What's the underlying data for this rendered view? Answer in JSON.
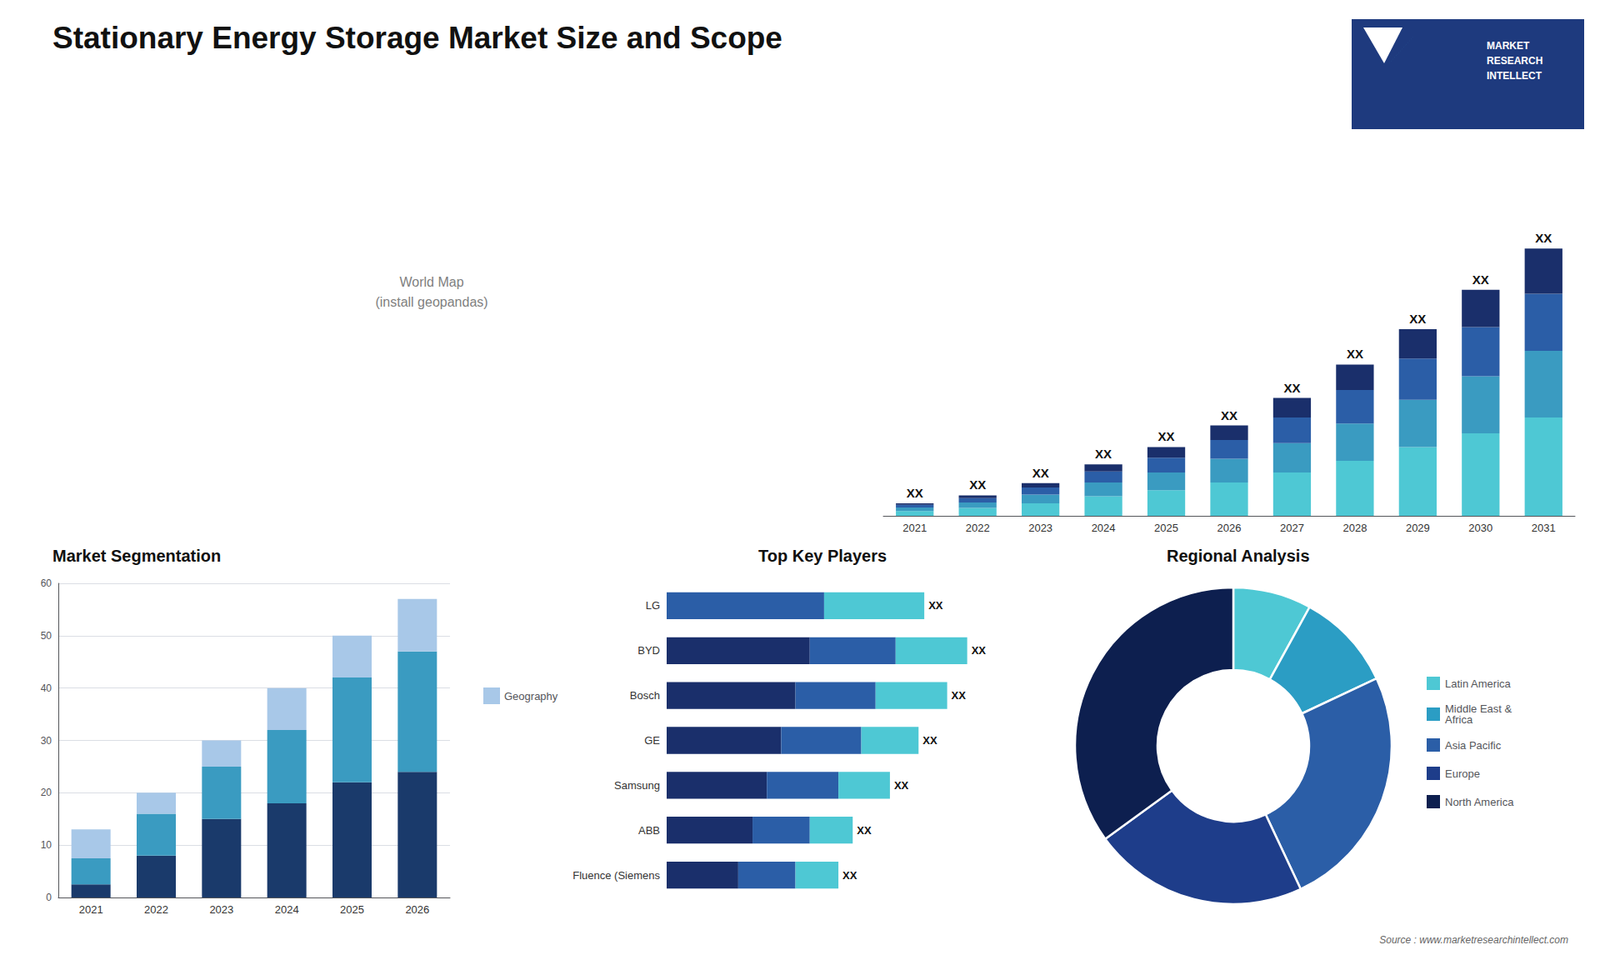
{
  "chart_data": [
    {
      "type": "bar",
      "title": "Stationary Energy Storage Market Size and Scope",
      "categories": [
        "2021",
        "2022",
        "2023",
        "2024",
        "2025",
        "2026",
        "2027",
        "2028",
        "2029",
        "2030",
        "2031"
      ],
      "stacked": true,
      "series": [
        {
          "color": "#4ec8d4",
          "values": [
            1.2,
            2.0,
            3.2,
            5.0,
            6.5,
            8.5,
            11.0,
            14.0,
            17.5,
            21.0,
            25.0
          ]
        },
        {
          "color": "#3a9bc1",
          "values": [
            0.9,
            1.4,
            2.2,
            3.5,
            4.5,
            6.0,
            7.5,
            9.5,
            12.0,
            14.5,
            17.0
          ]
        },
        {
          "color": "#2b5ea7",
          "values": [
            0.7,
            1.1,
            1.8,
            2.8,
            3.8,
            4.8,
            6.5,
            8.5,
            10.5,
            12.5,
            14.5
          ]
        },
        {
          "color": "#1a2f6b",
          "values": [
            0.4,
            0.7,
            1.1,
            1.8,
            2.7,
            3.7,
            5.0,
            6.5,
            7.5,
            9.5,
            11.5
          ]
        }
      ],
      "ylim": [
        0,
        95.2
      ],
      "tick_labels": "x",
      "grid": false,
      "annotations": [
        {
          "category": "2021",
          "text": "XX"
        },
        {
          "category": "2022",
          "text": "XX"
        },
        {
          "category": "2023",
          "text": "XX"
        },
        {
          "category": "2024",
          "text": "XX"
        },
        {
          "category": "2025",
          "text": "XX"
        },
        {
          "category": "2026",
          "text": "XX"
        },
        {
          "category": "2027",
          "text": "XX"
        },
        {
          "category": "2028",
          "text": "XX"
        },
        {
          "category": "2029",
          "text": "XX"
        },
        {
          "category": "2030",
          "text": "XX"
        },
        {
          "category": "2031",
          "text": "XX"
        }
      ]
    },
    {
      "type": "bar",
      "title": "Market Segmentation",
      "categories": [
        "2021",
        "2022",
        "2023",
        "2024",
        "2025",
        "2026"
      ],
      "stacked": true,
      "series": [
        {
          "color": "#1a3a6b",
          "values": [
            2.5,
            8.0,
            15.0,
            18.0,
            22.0,
            24.0
          ]
        },
        {
          "color": "#3a9bc1",
          "values": [
            5.0,
            8.0,
            10.0,
            14.0,
            20.0,
            23.0
          ]
        },
        {
          "name": "Geography",
          "color": "#a8c8e8",
          "values": [
            5.5,
            4.0,
            5.0,
            8.0,
            8.0,
            10.0
          ]
        }
      ],
      "ylim": [
        0,
        60
      ],
      "yticks": [
        0,
        10,
        20,
        30,
        40,
        50,
        60
      ],
      "grid": true,
      "legend": "right"
    },
    {
      "type": "bar",
      "orientation": "horizontal",
      "title": "Top Key Players",
      "categories": [
        "LG",
        "BYD",
        "Bosch",
        "GE",
        "Samsung",
        "ABB",
        "Fluence (Siemens"
      ],
      "stacked": true,
      "series": [
        {
          "color": "#1a2f6b",
          "values": [
            0.0,
            5.0,
            4.5,
            4.0,
            3.5,
            3.0,
            2.5
          ]
        },
        {
          "color": "#2b5ea7",
          "values": [
            5.5,
            3.0,
            2.8,
            2.8,
            2.5,
            2.0,
            2.0
          ]
        },
        {
          "color": "#4ec8d4",
          "values": [
            3.5,
            2.5,
            2.5,
            2.0,
            1.8,
            1.5,
            1.5
          ]
        }
      ],
      "xlim": [
        0,
        12.81
      ],
      "tick_labels": "y",
      "grid": false,
      "annotations": [
        {
          "category": "LG",
          "text": "XX"
        },
        {
          "category": "BYD",
          "text": "XX"
        },
        {
          "category": "Bosch",
          "text": "XX"
        },
        {
          "category": "GE",
          "text": "XX"
        },
        {
          "category": "Samsung",
          "text": "XX"
        },
        {
          "category": "ABB",
          "text": "XX"
        },
        {
          "category": "Fluence (Siemens",
          "text": "XX"
        }
      ]
    },
    {
      "type": "pie",
      "title": "Regional Analysis",
      "categories": [
        "Latin America",
        "Middle East &\nAfrica",
        "Asia Pacific",
        "Europe",
        "North America"
      ],
      "values": [
        8,
        10,
        25,
        22,
        35
      ],
      "colors": [
        "#4ec8d4",
        "#2b9dc4",
        "#2b5ea7",
        "#1e3d8a",
        "#0d1f4f"
      ],
      "legend": "right"
    },
    {
      "type": "text",
      "annotations": [
        {
          "text": "World Map\n(install geopandas)"
        },
        {
          "text": "MARKET\nRESEARCH\nINTELLECT"
        },
        {
          "text": "Source : www.marketresearchintellect.com"
        }
      ]
    }
  ]
}
